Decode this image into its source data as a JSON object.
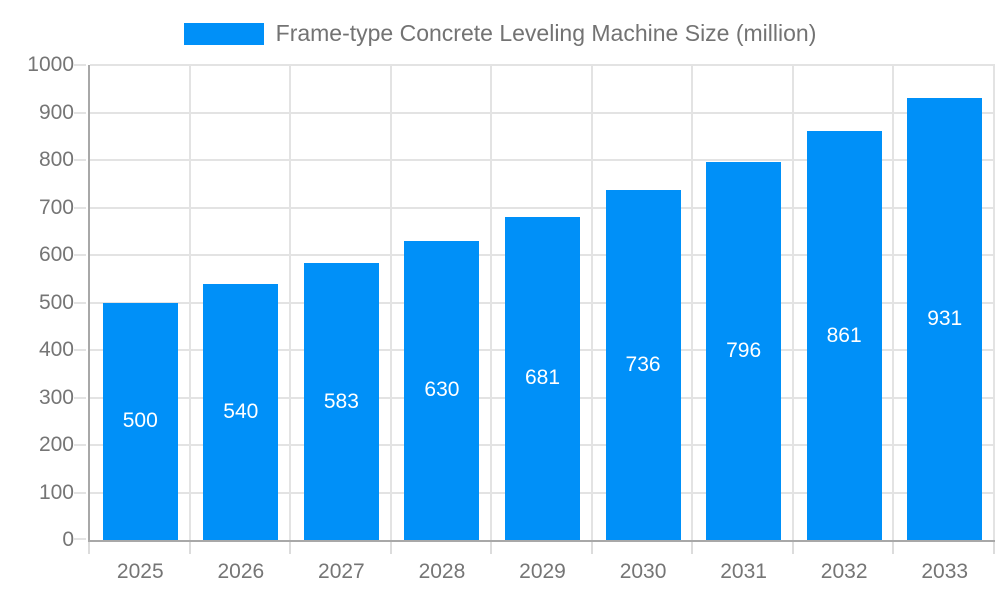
{
  "legend": {
    "label": "Frame-type Concrete Leveling Machine Size (million)"
  },
  "chart_data": {
    "type": "bar",
    "title": "Frame-type Concrete Leveling Machine Size (million)",
    "categories": [
      "2025",
      "2026",
      "2027",
      "2028",
      "2029",
      "2030",
      "2031",
      "2032",
      "2033"
    ],
    "values": [
      500,
      540,
      583,
      630,
      681,
      736,
      796,
      861,
      931
    ],
    "xlabel": "",
    "ylabel": "",
    "ylim": [
      0,
      1000
    ],
    "ytick_interval": 100,
    "grid": "on",
    "legend_position": "top-center",
    "value_label_position": "inside-center",
    "colors": {
      "bar": "#0090f8",
      "value_label": "#ffffff",
      "axis_text": "#757575",
      "title_text": "#737373",
      "gridline": "#e3e3e3",
      "axis_line": "#a8a8a8",
      "background": "#ffffff"
    }
  }
}
